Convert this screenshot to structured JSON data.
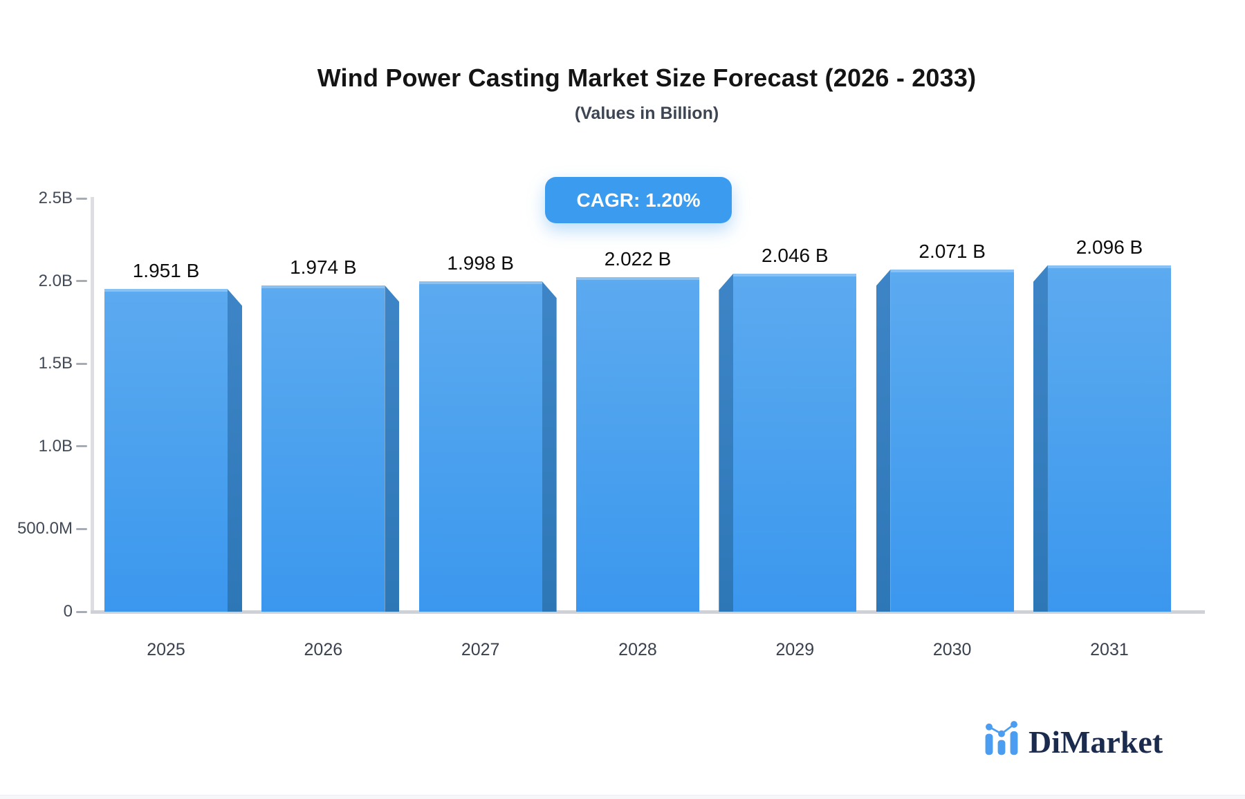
{
  "header": {
    "title": "Wind Power Casting Market Size Forecast (2026 - 2033)",
    "subtitle": "(Values in Billion)",
    "cagr_badge": "CAGR: 1.20%"
  },
  "branding": {
    "logo_text": "DiMarket",
    "logo_icon": "bar-line-chart-icon"
  },
  "chart_data": {
    "type": "bar",
    "title": "Wind Power Casting Market Size Forecast (2026 - 2033)",
    "subtitle": "(Values in Billion)",
    "annotation": "CAGR: 1.20%",
    "categories": [
      "2025",
      "2026",
      "2027",
      "2028",
      "2029",
      "2030",
      "2031"
    ],
    "values": [
      1.951,
      1.974,
      1.998,
      2.022,
      2.046,
      2.071,
      2.096
    ],
    "value_labels": [
      "1.951 B",
      "1.974 B",
      "1.998 B",
      "2.022 B",
      "2.046 B",
      "2.071 B",
      "2.096 B"
    ],
    "unit": "Billion",
    "xlabel": "",
    "ylabel": "",
    "ylim": [
      0,
      2.5
    ],
    "y_ticks": [
      {
        "value": 0,
        "label": "0"
      },
      {
        "value": 0.5,
        "label": "500.0M"
      },
      {
        "value": 1.0,
        "label": "1.0B"
      },
      {
        "value": 1.5,
        "label": "1.5B"
      },
      {
        "value": 2.0,
        "label": "2.0B"
      },
      {
        "value": 2.5,
        "label": "2.5B"
      }
    ],
    "grid": false,
    "legend": false,
    "bar_style": "3d-perspective-center-vanishing",
    "colors": {
      "bar_face_top": "#5caaf0",
      "bar_face_bottom": "#3b97ee",
      "bar_side": "#2e77b7",
      "badge_background": "#3b9bef",
      "badge_text": "#ffffff",
      "axis_line": "#ced2d8",
      "tick_label": "#424957",
      "value_label": "#0d0d0d",
      "brand_navy": "#1b2b4d",
      "brand_blue": "#4a9df0"
    }
  }
}
